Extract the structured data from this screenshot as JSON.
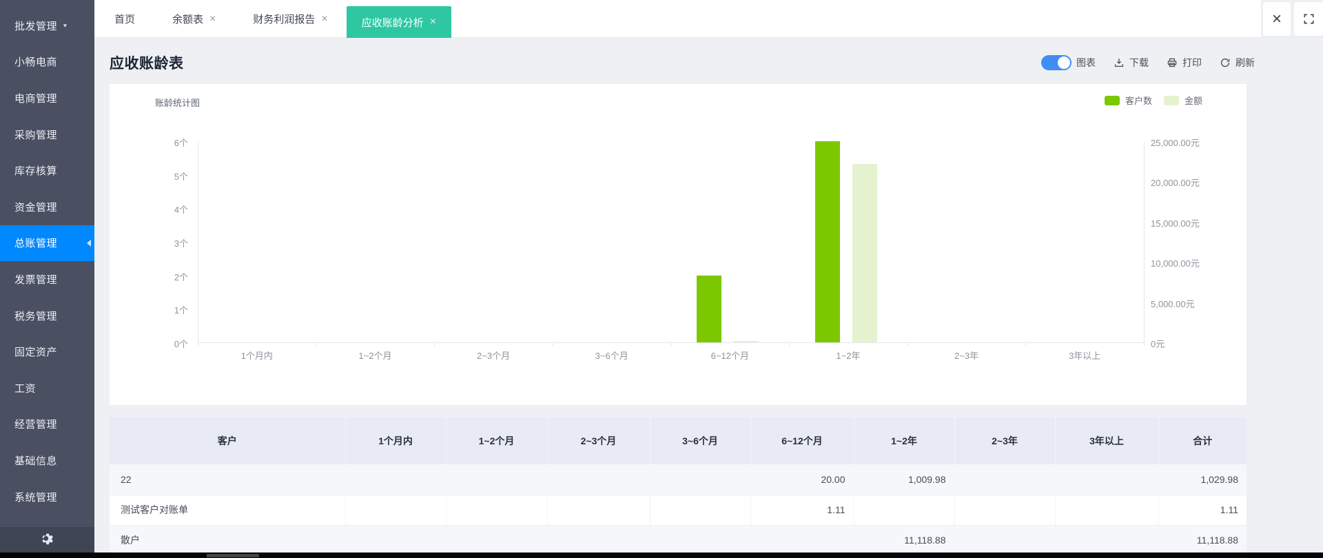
{
  "icons": {
    "close": "×",
    "caret_down": "▼"
  },
  "sidebar": {
    "items": [
      {
        "label": "批发管理",
        "caret": true,
        "active": false
      },
      {
        "label": "小畅电商",
        "caret": false,
        "active": false
      },
      {
        "label": "电商管理",
        "caret": false,
        "active": false
      },
      {
        "label": "采购管理",
        "caret": false,
        "active": false
      },
      {
        "label": "库存核算",
        "caret": false,
        "active": false
      },
      {
        "label": "资金管理",
        "caret": false,
        "active": false
      },
      {
        "label": "总账管理",
        "caret": false,
        "active": true
      },
      {
        "label": "发票管理",
        "caret": false,
        "active": false
      },
      {
        "label": "税务管理",
        "caret": false,
        "active": false
      },
      {
        "label": "固定资产",
        "caret": false,
        "active": false
      },
      {
        "label": "工资",
        "caret": false,
        "active": false
      },
      {
        "label": "经营管理",
        "caret": false,
        "active": false
      },
      {
        "label": "基础信息",
        "caret": false,
        "active": false
      },
      {
        "label": "系统管理",
        "caret": false,
        "active": false
      }
    ]
  },
  "tabs": {
    "items": [
      {
        "label": "首页",
        "closable": false,
        "active": false
      },
      {
        "label": "余额表",
        "closable": true,
        "active": false
      },
      {
        "label": "财务利润报告",
        "closable": true,
        "active": false
      },
      {
        "label": "应收账龄分析",
        "closable": true,
        "active": true
      }
    ]
  },
  "page": {
    "title": "应收账龄表"
  },
  "toolbar": {
    "chart_toggle_label": "图表",
    "toggle_on": true,
    "download_label": "下载",
    "print_label": "打印",
    "refresh_label": "刷新"
  },
  "chart_data": {
    "type": "bar",
    "title": "账龄统计图",
    "categories": [
      "1个月内",
      "1~2个月",
      "2~3个月",
      "3~6个月",
      "6~12个月",
      "1~2年",
      "2~3年",
      "3年以上"
    ],
    "series": [
      {
        "name": "客户数",
        "axis": "left",
        "color": "#7cc800",
        "values": [
          0,
          0,
          0,
          0,
          2,
          6,
          0,
          0
        ]
      },
      {
        "name": "金额",
        "axis": "right",
        "color": "#e5f2d0",
        "values": [
          0,
          0,
          0,
          0,
          21.11,
          22170,
          0,
          0
        ]
      }
    ],
    "left_axis": {
      "labels": [
        "0个",
        "1个",
        "2个",
        "3个",
        "4个",
        "5个",
        "6个"
      ],
      "max": 6,
      "unit": "个"
    },
    "right_axis": {
      "labels": [
        "0元",
        "5,000.00元",
        "10,000.00元",
        "15,000.00元",
        "20,000.00元",
        "25,000.00元"
      ],
      "max": 25000,
      "unit": "元"
    },
    "legend_position": "top-right",
    "grid": false
  },
  "table": {
    "columns": [
      "客户",
      "1个月内",
      "1~2个月",
      "2~3个月",
      "3~6个月",
      "6~12个月",
      "1~2年",
      "2~3年",
      "3年以上",
      "合计"
    ],
    "rows": [
      [
        "22",
        "",
        "",
        "",
        "",
        "20.00",
        "1,009.98",
        "",
        "",
        "1,029.98"
      ],
      [
        "测试客户对账单",
        "",
        "",
        "",
        "",
        "1.11",
        "",
        "",
        "",
        "1.11"
      ],
      [
        "散户",
        "",
        "",
        "",
        "",
        "",
        "11,118.88",
        "",
        "",
        "11,118.88"
      ]
    ]
  }
}
